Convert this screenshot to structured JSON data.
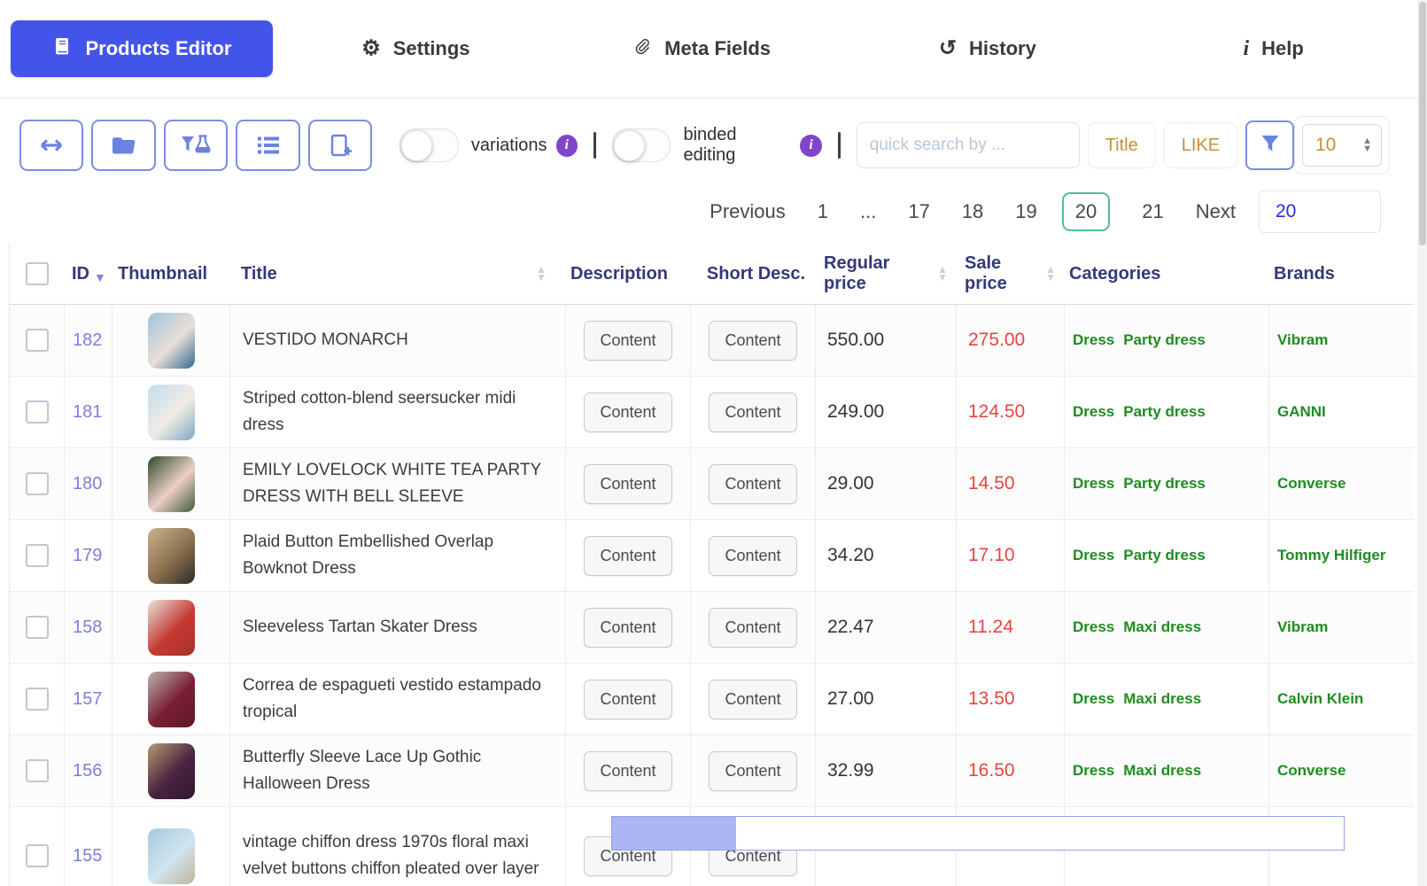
{
  "nav": {
    "tabs": [
      {
        "label": "Products Editor",
        "icon": "book-icon",
        "active": true
      },
      {
        "label": "Settings",
        "icon": "gear-icon",
        "active": false
      },
      {
        "label": "Meta Fields",
        "icon": "paperclip-icon",
        "active": false
      },
      {
        "label": "History",
        "icon": "history-icon",
        "active": false
      },
      {
        "label": "Help",
        "icon": "info-icon",
        "active": false
      }
    ]
  },
  "toolbar": {
    "buttons": [
      {
        "name": "expand-columns-button",
        "icon": "arrows-horizontal-icon"
      },
      {
        "name": "open-folder-button",
        "icon": "folder-icon"
      },
      {
        "name": "filter-test-button",
        "icon": "funnel-flask-icon"
      },
      {
        "name": "list-view-button",
        "icon": "list-icon"
      },
      {
        "name": "add-product-button",
        "icon": "add-document-icon"
      }
    ],
    "toggles": [
      {
        "label": "variations",
        "state": "off"
      },
      {
        "label": "binded editing",
        "state": "off"
      }
    ],
    "search_placeholder": "quick search by ...",
    "search_field_label": "Title",
    "search_operator_label": "LIKE",
    "per_page": "10"
  },
  "pagination": {
    "previous_label": "Previous",
    "next_label": "Next",
    "pages": [
      "1",
      "...",
      "17",
      "18",
      "19",
      "20",
      "21"
    ],
    "current_page": "20",
    "jump_value": "20"
  },
  "table": {
    "headers": [
      "ID",
      "Thumbnail",
      "Title",
      "Description",
      "Short Desc.",
      "Regular price",
      "Sale price",
      "Categories",
      "Brands"
    ],
    "content_button_label": "Content"
  },
  "rows": [
    {
      "id": "182",
      "title": "VESTIDO MONARCH",
      "regular_price": "550.00",
      "sale_price": "275.00",
      "categories": [
        "Dress",
        "Party dress"
      ],
      "brand": "Vibram",
      "thumb": [
        "#9fc3dd",
        "#eadfd8",
        "#2e6a96"
      ]
    },
    {
      "id": "181",
      "title": "Striped cotton-blend seersucker midi dress",
      "regular_price": "249.00",
      "sale_price": "124.50",
      "categories": [
        "Dress",
        "Party dress"
      ],
      "brand": "GANNI",
      "thumb": [
        "#c3dded",
        "#f0ebe2",
        "#7ba7c4"
      ]
    },
    {
      "id": "180",
      "title": "EMILY LOVELOCK WHITE TEA PARTY DRESS WITH BELL SLEEVE",
      "regular_price": "29.00",
      "sale_price": "14.50",
      "categories": [
        "Dress",
        "Party dress"
      ],
      "brand": "Converse",
      "thumb": [
        "#2e4a2a",
        "#eccfc8",
        "#3f5a38"
      ]
    },
    {
      "id": "179",
      "title": "Plaid Button Embellished Overlap Bowknot Dress",
      "regular_price": "34.20",
      "sale_price": "17.10",
      "categories": [
        "Dress",
        "Party dress"
      ],
      "brand": "Tommy Hilfiger",
      "thumb": [
        "#c9b38c",
        "#8a6f4e",
        "#2b2b2b"
      ]
    },
    {
      "id": "158",
      "title": "Sleeveless Tartan Skater Dress",
      "regular_price": "22.47",
      "sale_price": "11.24",
      "categories": [
        "Dress",
        "Maxi dress"
      ],
      "brand": "Vibram",
      "thumb": [
        "#e8e4dc",
        "#c43b33",
        "#a82f2a"
      ]
    },
    {
      "id": "157",
      "title": "Correa de espagueti vestido estampado tropical",
      "regular_price": "27.00",
      "sale_price": "13.50",
      "categories": [
        "Dress",
        "Maxi dress"
      ],
      "brand": "Calvin Klein",
      "thumb": [
        "#b8b4b0",
        "#7a1f33",
        "#5e1828"
      ]
    },
    {
      "id": "156",
      "title": "Butterfly Sleeve Lace Up Gothic Halloween Dress",
      "regular_price": "32.99",
      "sale_price": "16.50",
      "categories": [
        "Dress",
        "Maxi dress"
      ],
      "brand": "Converse",
      "thumb": [
        "#b59a72",
        "#4a2440",
        "#2f1830"
      ]
    },
    {
      "id": "155",
      "title": "vintage chiffon dress 1970s floral maxi velvet buttons chiffon pleated over layer",
      "regular_price": "",
      "sale_price": "",
      "categories": [],
      "brand": "",
      "thumb": [
        "#a8cade",
        "#cfe4ee",
        "#c2b49a"
      ]
    }
  ],
  "progress": {
    "percent": 17
  },
  "colors": {
    "accent_blue": "#4355e8",
    "toolbar_icon_blue": "#6a82e0",
    "header_navy": "#34387b",
    "id_purple": "#7a80d8",
    "category_green": "#1f8c1f",
    "sale_red": "#e8433f",
    "gold": "#c39138",
    "current_page_green": "#56bd93",
    "progress_fill": "#acb6f2",
    "info_badge_purple": "#8145c9"
  }
}
